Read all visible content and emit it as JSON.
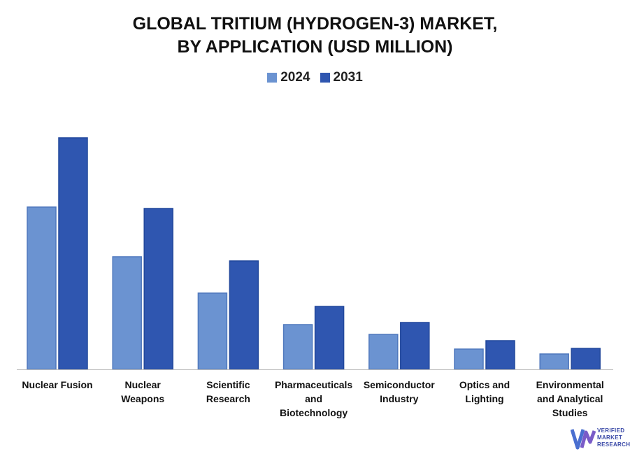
{
  "chart_data": {
    "type": "bar",
    "title_lines": [
      "GLOBAL TRITIUM (HYDROGEN-3) MARKET,",
      "BY APPLICATION (USD MILLION)"
    ],
    "categories": [
      [
        "Nuclear Fusion"
      ],
      [
        "Nuclear",
        "Weapons"
      ],
      [
        "Scientific",
        "Research"
      ],
      [
        "Pharmaceuticals",
        "and",
        "Biotechnology"
      ],
      [
        "Semiconductor",
        "Industry"
      ],
      [
        "Optics and",
        "Lighting"
      ],
      [
        "Environmental",
        "and Analytical",
        "Studies"
      ]
    ],
    "series": [
      {
        "name": "2024",
        "color": "#6b93d1",
        "values": [
          232,
          161,
          109,
          64,
          50,
          29,
          22
        ]
      },
      {
        "name": "2031",
        "color": "#2f56b0",
        "values": [
          331,
          230,
          155,
          90,
          67,
          41,
          30
        ]
      }
    ],
    "ylim": [
      0,
      340
    ],
    "y_axis_visible": false,
    "grid": false,
    "legend_position": "top-center"
  },
  "logo": {
    "lines": [
      "VERIFIED",
      "MARKET",
      "RESEARCH"
    ]
  }
}
